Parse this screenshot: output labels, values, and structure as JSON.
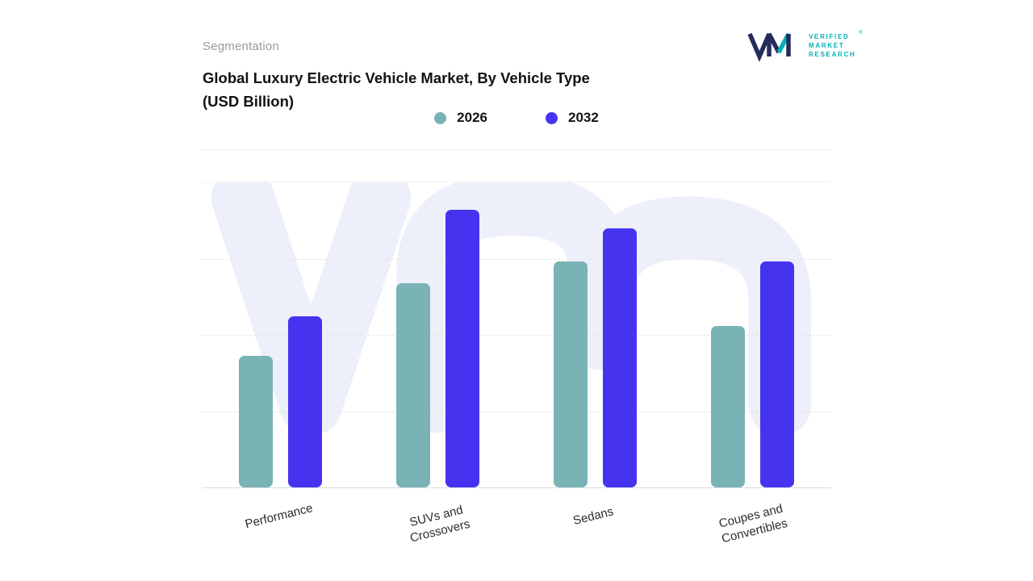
{
  "header": {
    "eyebrow": "Segmentation",
    "title_line1": "Global Luxury Electric Vehicle Market, By Vehicle Type",
    "title_line2": "(USD Billion)"
  },
  "logo": {
    "lines": [
      "VERIFIED",
      "MARKET",
      "RESEARCH"
    ],
    "registered_mark": "®"
  },
  "legend": [
    {
      "label": "2026",
      "color": "#79b3b6"
    },
    {
      "label": "2032",
      "color": "#4633f0"
    }
  ],
  "chart_data": {
    "type": "bar",
    "title": "Global Luxury Electric Vehicle Market, By Vehicle Type (USD Billion)",
    "categories": [
      "Performance",
      "SUVs and\nCrossovers",
      "Sedans",
      "Coupes and\nConvertibles"
    ],
    "series": [
      {
        "name": "2026",
        "color": "#79b3b6",
        "values": [
          43,
          67,
          74,
          53
        ]
      },
      {
        "name": "2032",
        "color": "#4633f0",
        "values": [
          56,
          91,
          85,
          74
        ]
      }
    ],
    "xlabel": "",
    "ylabel": "",
    "ylim": [
      0,
      100
    ],
    "y_axis_labels_visible": false,
    "grid": "horizontal-dashed",
    "legend_position": "top-center",
    "note": "No numeric axis labels are shown in the figure; values are relative estimates on a 0-100 scale."
  },
  "colors": {
    "bar_2026": "#79b3b6",
    "bar_2032": "#4633f0",
    "logo_navy": "#252b5c",
    "logo_teal": "#00b0b4",
    "watermark": "#edeffa",
    "grid": "#e5e5e5",
    "title_text": "#121212",
    "muted_text": "#9a9a9a"
  }
}
